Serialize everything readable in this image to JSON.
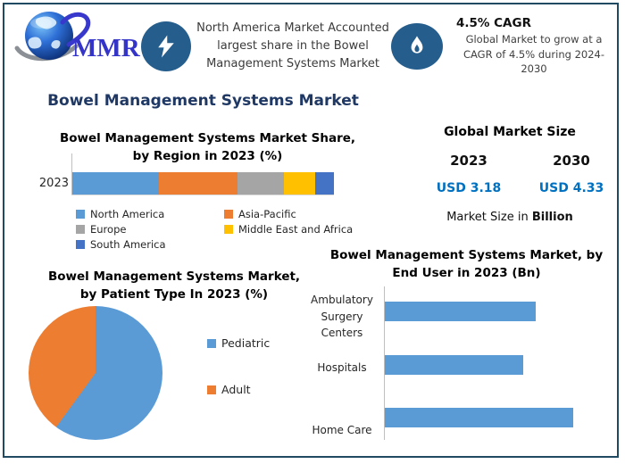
{
  "colors": {
    "frame_border": "#204A61",
    "icon_circle_blue": "#255E8D",
    "title_navy": "#1F3864",
    "value_blue": "#0070C0",
    "bar_blue": "#5B9BD5"
  },
  "header": {
    "logo_text": "MMR",
    "highlight": {
      "icon": "lightning-icon",
      "lines": [
        "North America Market Accounted",
        "largest share in the Bowel",
        "Management Systems Market"
      ]
    },
    "cagr": {
      "icon": "flame-icon",
      "title": "4.5% CAGR",
      "lines": [
        "Global Market to grow at a",
        "CAGR of 4.5% during 2024-",
        "2030"
      ]
    }
  },
  "main_title": "Bowel Management Systems Market",
  "market_size": {
    "title": "Global Market Size",
    "year_left": "2023",
    "year_right": "2030",
    "value_left": "USD 3.18",
    "value_right": "USD 4.33",
    "note_prefix": "Market Size in",
    "note_bold": "Billion"
  },
  "chart_data": [
    {
      "type": "bar",
      "subtype": "stacked-horizontal",
      "title": "Bowel Management Systems Market Share, by Region in 2023 (%)",
      "title_lines": [
        "Bowel Management Systems Market Share,",
        "by Region in 2023 (%)"
      ],
      "categories": [
        "2023"
      ],
      "series": [
        {
          "name": "North America",
          "value": 33,
          "color": "#5B9BD5"
        },
        {
          "name": "Asia-Pacific",
          "value": 30,
          "color": "#ED7D31"
        },
        {
          "name": "Europe",
          "value": 18,
          "color": "#A5A5A5"
        },
        {
          "name": "Middle East and Africa",
          "value": 12,
          "color": "#FFC000"
        },
        {
          "name": "South America",
          "value": 7,
          "color": "#4472C4"
        }
      ],
      "unit": "%",
      "xlim": [
        0,
        100
      ],
      "grid": false,
      "legend_position": "bottom"
    },
    {
      "type": "pie",
      "title": "Bowel Management Systems Market, by Patient Type In 2023 (%)",
      "title_lines": [
        "Bowel Management Systems Market,",
        "by Patient Type In 2023 (%)"
      ],
      "slices": [
        {
          "name": "Pediatric",
          "value": 60,
          "color": "#5B9BD5"
        },
        {
          "name": "Adult",
          "value": 40,
          "color": "#ED7D31"
        }
      ],
      "start_angle": 0,
      "unit": "%",
      "legend_position": "right"
    },
    {
      "type": "bar",
      "subtype": "horizontal",
      "title": "Bowel Management Systems Market, by End User in 2023 (Bn)",
      "title_lines": [
        "Bowel Management Systems Market, by",
        "End User in 2023 (Bn)"
      ],
      "categories": [
        "Ambulatory Surgery Centers",
        "Hospitals",
        "Home Care"
      ],
      "values": [
        1.0,
        0.92,
        1.25
      ],
      "unit": "Bn",
      "xlim": [
        0,
        1.4
      ],
      "grid": false,
      "bar_color": "#5B9BD5"
    }
  ]
}
